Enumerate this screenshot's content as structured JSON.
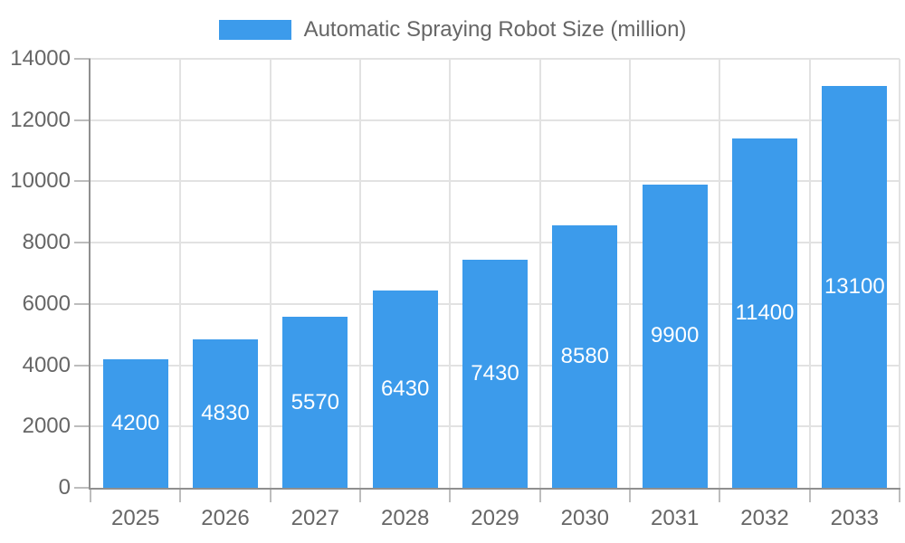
{
  "chart_data": {
    "type": "bar",
    "title": "",
    "legend": {
      "label": "Automatic Spraying Robot Size (million)",
      "position": "top-center"
    },
    "categories": [
      "2025",
      "2026",
      "2027",
      "2028",
      "2029",
      "2030",
      "2031",
      "2032",
      "2033"
    ],
    "series": [
      {
        "name": "Automatic Spraying Robot Size (million)",
        "values": [
          4200,
          4830,
          5570,
          6430,
          7430,
          8580,
          9900,
          11400,
          13100
        ]
      }
    ],
    "bar_value_labels": [
      "4200",
      "4830",
      "5570",
      "6430",
      "7430",
      "8580",
      "9900",
      "11400",
      "13100"
    ],
    "bar_label_position": "inside-center",
    "xlabel": "",
    "ylabel": "",
    "ylim": [
      0,
      14000
    ],
    "y_tick_step": 2000,
    "y_tick_labels": [
      "0",
      "2000",
      "4000",
      "6000",
      "8000",
      "10000",
      "12000",
      "14000"
    ],
    "grid": true,
    "legend_position": "top-center",
    "colors": {
      "bar": "#3C9BEB",
      "grid": "#E2E2E2",
      "axis": "#8F8F8F",
      "tick": "#BDBDBD",
      "axis_label": "#666666",
      "legend_text": "#666666",
      "bar_label": "#FFFFFF",
      "background": "#FFFFFF"
    }
  }
}
